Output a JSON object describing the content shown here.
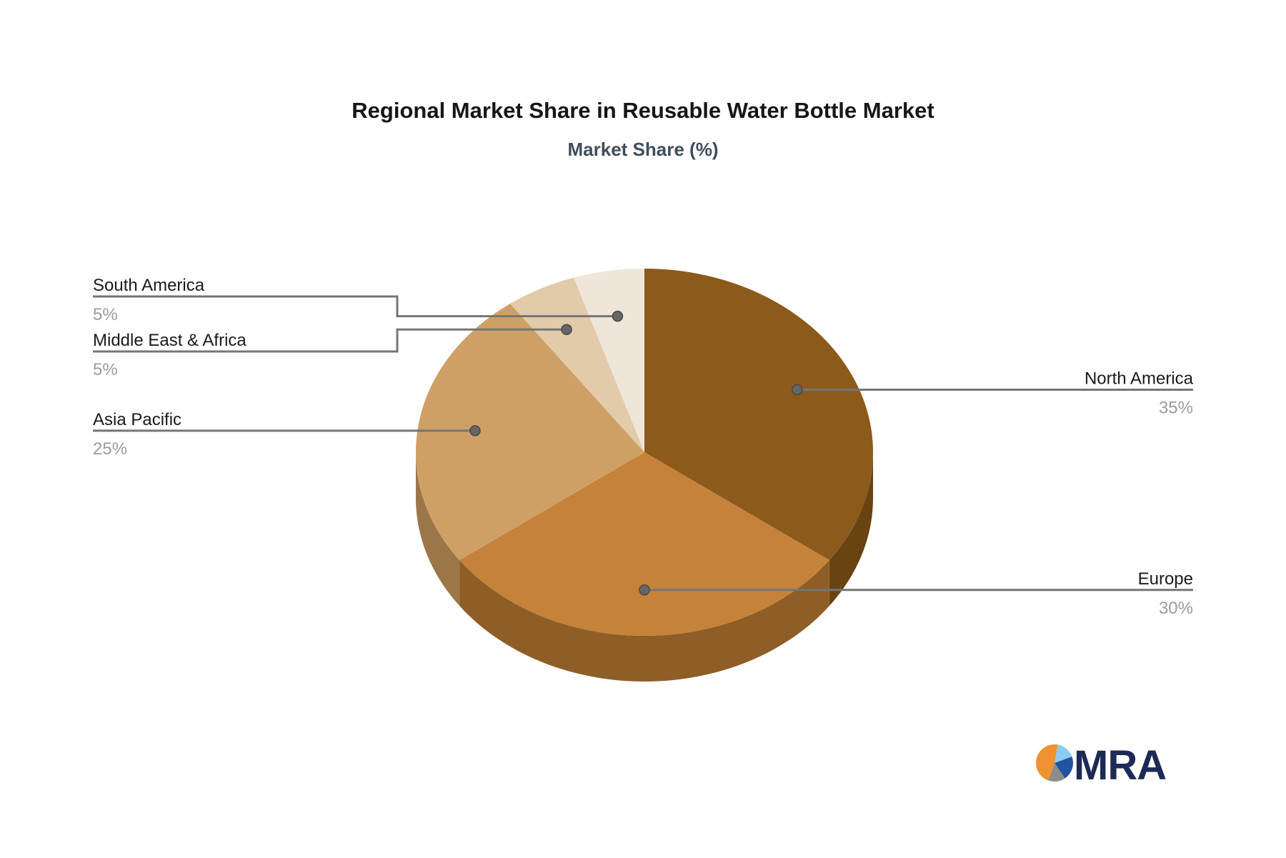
{
  "header": {
    "title": "Regional Market Share in Reusable Water Bottle Market",
    "subtitle": "Market Share (%)"
  },
  "chart_data": {
    "type": "pie",
    "effect": "3d",
    "title": "Regional Market Share in Reusable Water Bottle Market",
    "subtitle": "Market Share (%)",
    "unit": "%",
    "start_angle": "12-oclock",
    "direction": "clockwise",
    "categories": [
      "North America",
      "Europe",
      "Asia Pacific",
      "Middle East & Africa",
      "South America"
    ],
    "values": [
      35,
      30,
      25,
      5,
      5
    ],
    "slices": [
      {
        "label": "North America",
        "value": 35,
        "pct_label": "35%",
        "color": "#8C5A1B",
        "side_color": "#694312",
        "callout_side": "right"
      },
      {
        "label": "Europe",
        "value": 30,
        "pct_label": "30%",
        "color": "#C5823A",
        "side_color": "#8F5E26",
        "callout_side": "right"
      },
      {
        "label": "Asia Pacific",
        "value": 25,
        "pct_label": "25%",
        "color": "#CFA066",
        "side_color": "#9A7648",
        "callout_side": "left"
      },
      {
        "label": "Middle East & Africa",
        "value": 5,
        "pct_label": "5%",
        "color": "#E2CBAA",
        "side_color": "#B49B76",
        "callout_side": "left"
      },
      {
        "label": "South America",
        "value": 5,
        "pct_label": "5%",
        "color": "#EEE6D9",
        "side_color": "#C2B5A1",
        "callout_side": "left"
      }
    ],
    "label_color": "#1a1a1a",
    "pct_color": "#9b9b9b",
    "connector_color": "#757575",
    "legend_position": "callouts"
  },
  "logo": {
    "text": "MRA",
    "text_color": "#1D2A55",
    "pie_colors": {
      "orange": "#F0922F",
      "light_blue": "#8FCBEE",
      "blue": "#2153A0",
      "gray": "#8C8C8C"
    }
  }
}
